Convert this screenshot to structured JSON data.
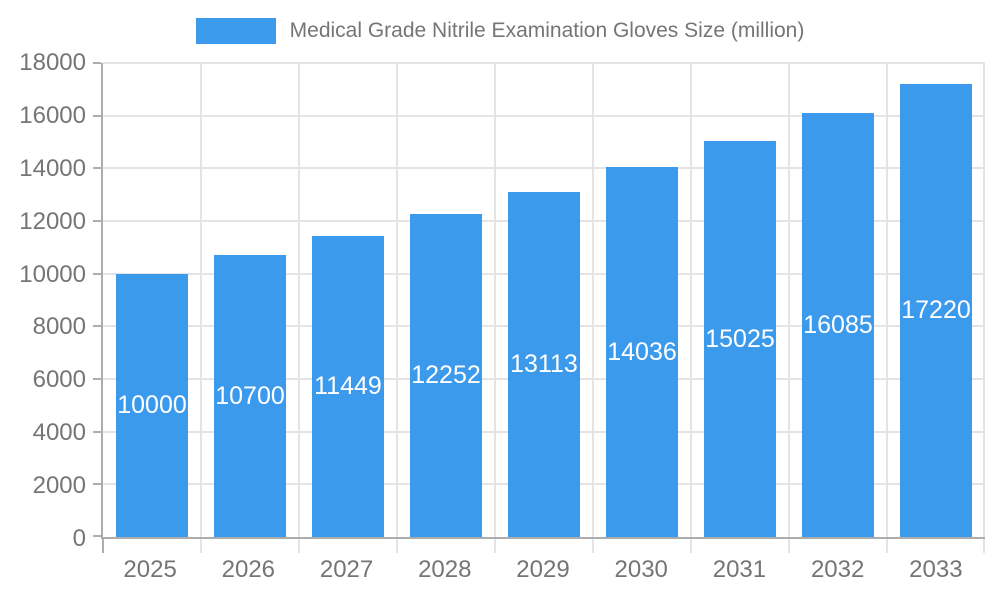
{
  "legend": {
    "label": "Medical Grade Nitrile Examination Gloves Size (million)"
  },
  "colors": {
    "bar": "#3C9AEC",
    "grid": "#E4E4E4",
    "axis": "#ADADAD",
    "axis_text": "#757575",
    "bar_label_text": "#FFFFFF",
    "background": "#FFFFFF"
  },
  "chart_data": {
    "type": "bar",
    "title": "Medical Grade Nitrile Examination Gloves Size (million)",
    "categories": [
      "2025",
      "2026",
      "2027",
      "2028",
      "2029",
      "2030",
      "2031",
      "2032",
      "2033"
    ],
    "values": [
      10000,
      10700,
      11449,
      12252,
      13113,
      14036,
      15025,
      16085,
      17220
    ],
    "bar_value_labels": [
      "10000",
      "10700",
      "11449",
      "12252",
      "13113",
      "14036",
      "15025",
      "16085",
      "17220"
    ],
    "xlabel": "",
    "ylabel": "",
    "ylim": [
      0,
      18000
    ],
    "ytick_step": 2000,
    "y_ticks": [
      0,
      2000,
      4000,
      6000,
      8000,
      10000,
      12000,
      14000,
      16000,
      18000
    ],
    "y_tick_labels": [
      "0",
      "2000",
      "4000",
      "6000",
      "8000",
      "10000",
      "12000",
      "14000",
      "16000",
      "18000"
    ],
    "grid": true,
    "legend_position": "top",
    "value_label_position": "middle-of-bar"
  }
}
